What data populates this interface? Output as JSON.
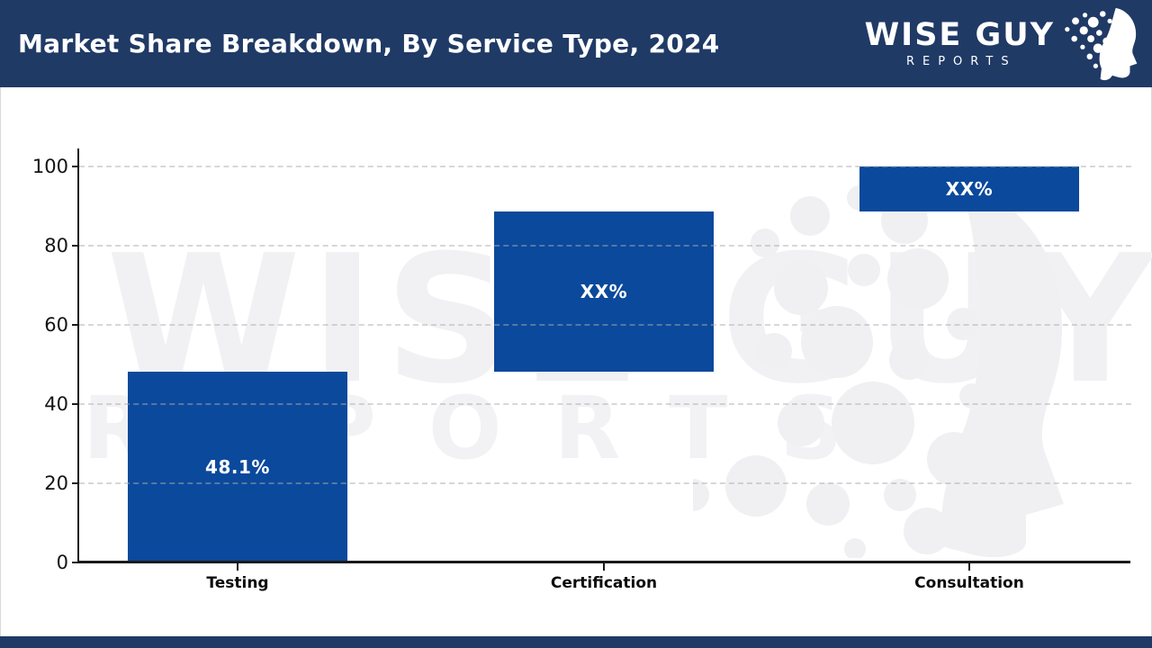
{
  "header": {
    "title": "Market Share Breakdown, By Service Type, 2024",
    "logo": {
      "line1": "WISE GUY",
      "line2": "REPORTS"
    }
  },
  "watermark": {
    "line1": "WISE GUY",
    "line2": "REPORTS"
  },
  "colors": {
    "header_bg": "#203a66",
    "footer_bg": "#203a66",
    "bar": "#0b499c",
    "bar_label": "#ffffff",
    "axis": "#1a1a1a",
    "grid": "#d7d7d7",
    "watermark": "#f1f1f4"
  },
  "chart_data": {
    "type": "bar",
    "subtype": "waterfall",
    "title": "Market Share Breakdown, By Service Type, 2024",
    "categories": [
      "Testing",
      "Certification",
      "Consultation"
    ],
    "segments": [
      {
        "category": "Testing",
        "start": 0,
        "end": 48.1,
        "label": "48.1%"
      },
      {
        "category": "Certification",
        "start": 48.1,
        "end": 88.6,
        "label": "XX%"
      },
      {
        "category": "Consultation",
        "start": 88.6,
        "end": 100,
        "label": "XX%"
      }
    ],
    "y_ticks": [
      0,
      20,
      40,
      60,
      80,
      100
    ],
    "ylim": [
      0,
      100
    ],
    "xlabel": "",
    "ylabel": "",
    "grid": "horizontal-dashed",
    "legend": "none"
  }
}
